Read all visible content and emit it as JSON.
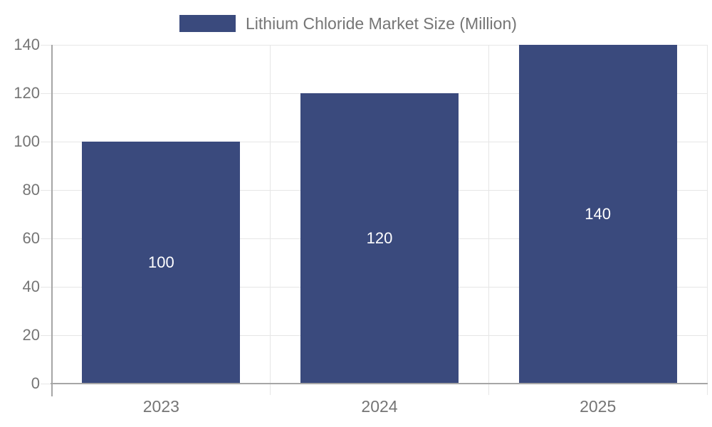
{
  "chart_data": {
    "type": "bar",
    "title": "Lithium Chloride Market Size (Million)",
    "categories": [
      "2023",
      "2024",
      "2025"
    ],
    "values": [
      100,
      120,
      140
    ],
    "data_labels": [
      "100",
      "120",
      "140"
    ],
    "series": [
      {
        "name": "Lithium Chloride Market Size (Million)",
        "values": [
          100,
          120,
          140
        ]
      }
    ],
    "xlabel": "",
    "ylabel": "",
    "ylim": [
      0,
      140
    ],
    "yticks": [
      0,
      20,
      40,
      60,
      80,
      100,
      120,
      140
    ],
    "grid": true,
    "legend_position": "top-center",
    "colors": {
      "bar": "#3A4A7D",
      "text": "#757575",
      "data_label": "#FFFFFF",
      "gridline": "#E6E6E6",
      "axis_line": "#A6A6A6",
      "background": "#FFFFFF"
    }
  }
}
